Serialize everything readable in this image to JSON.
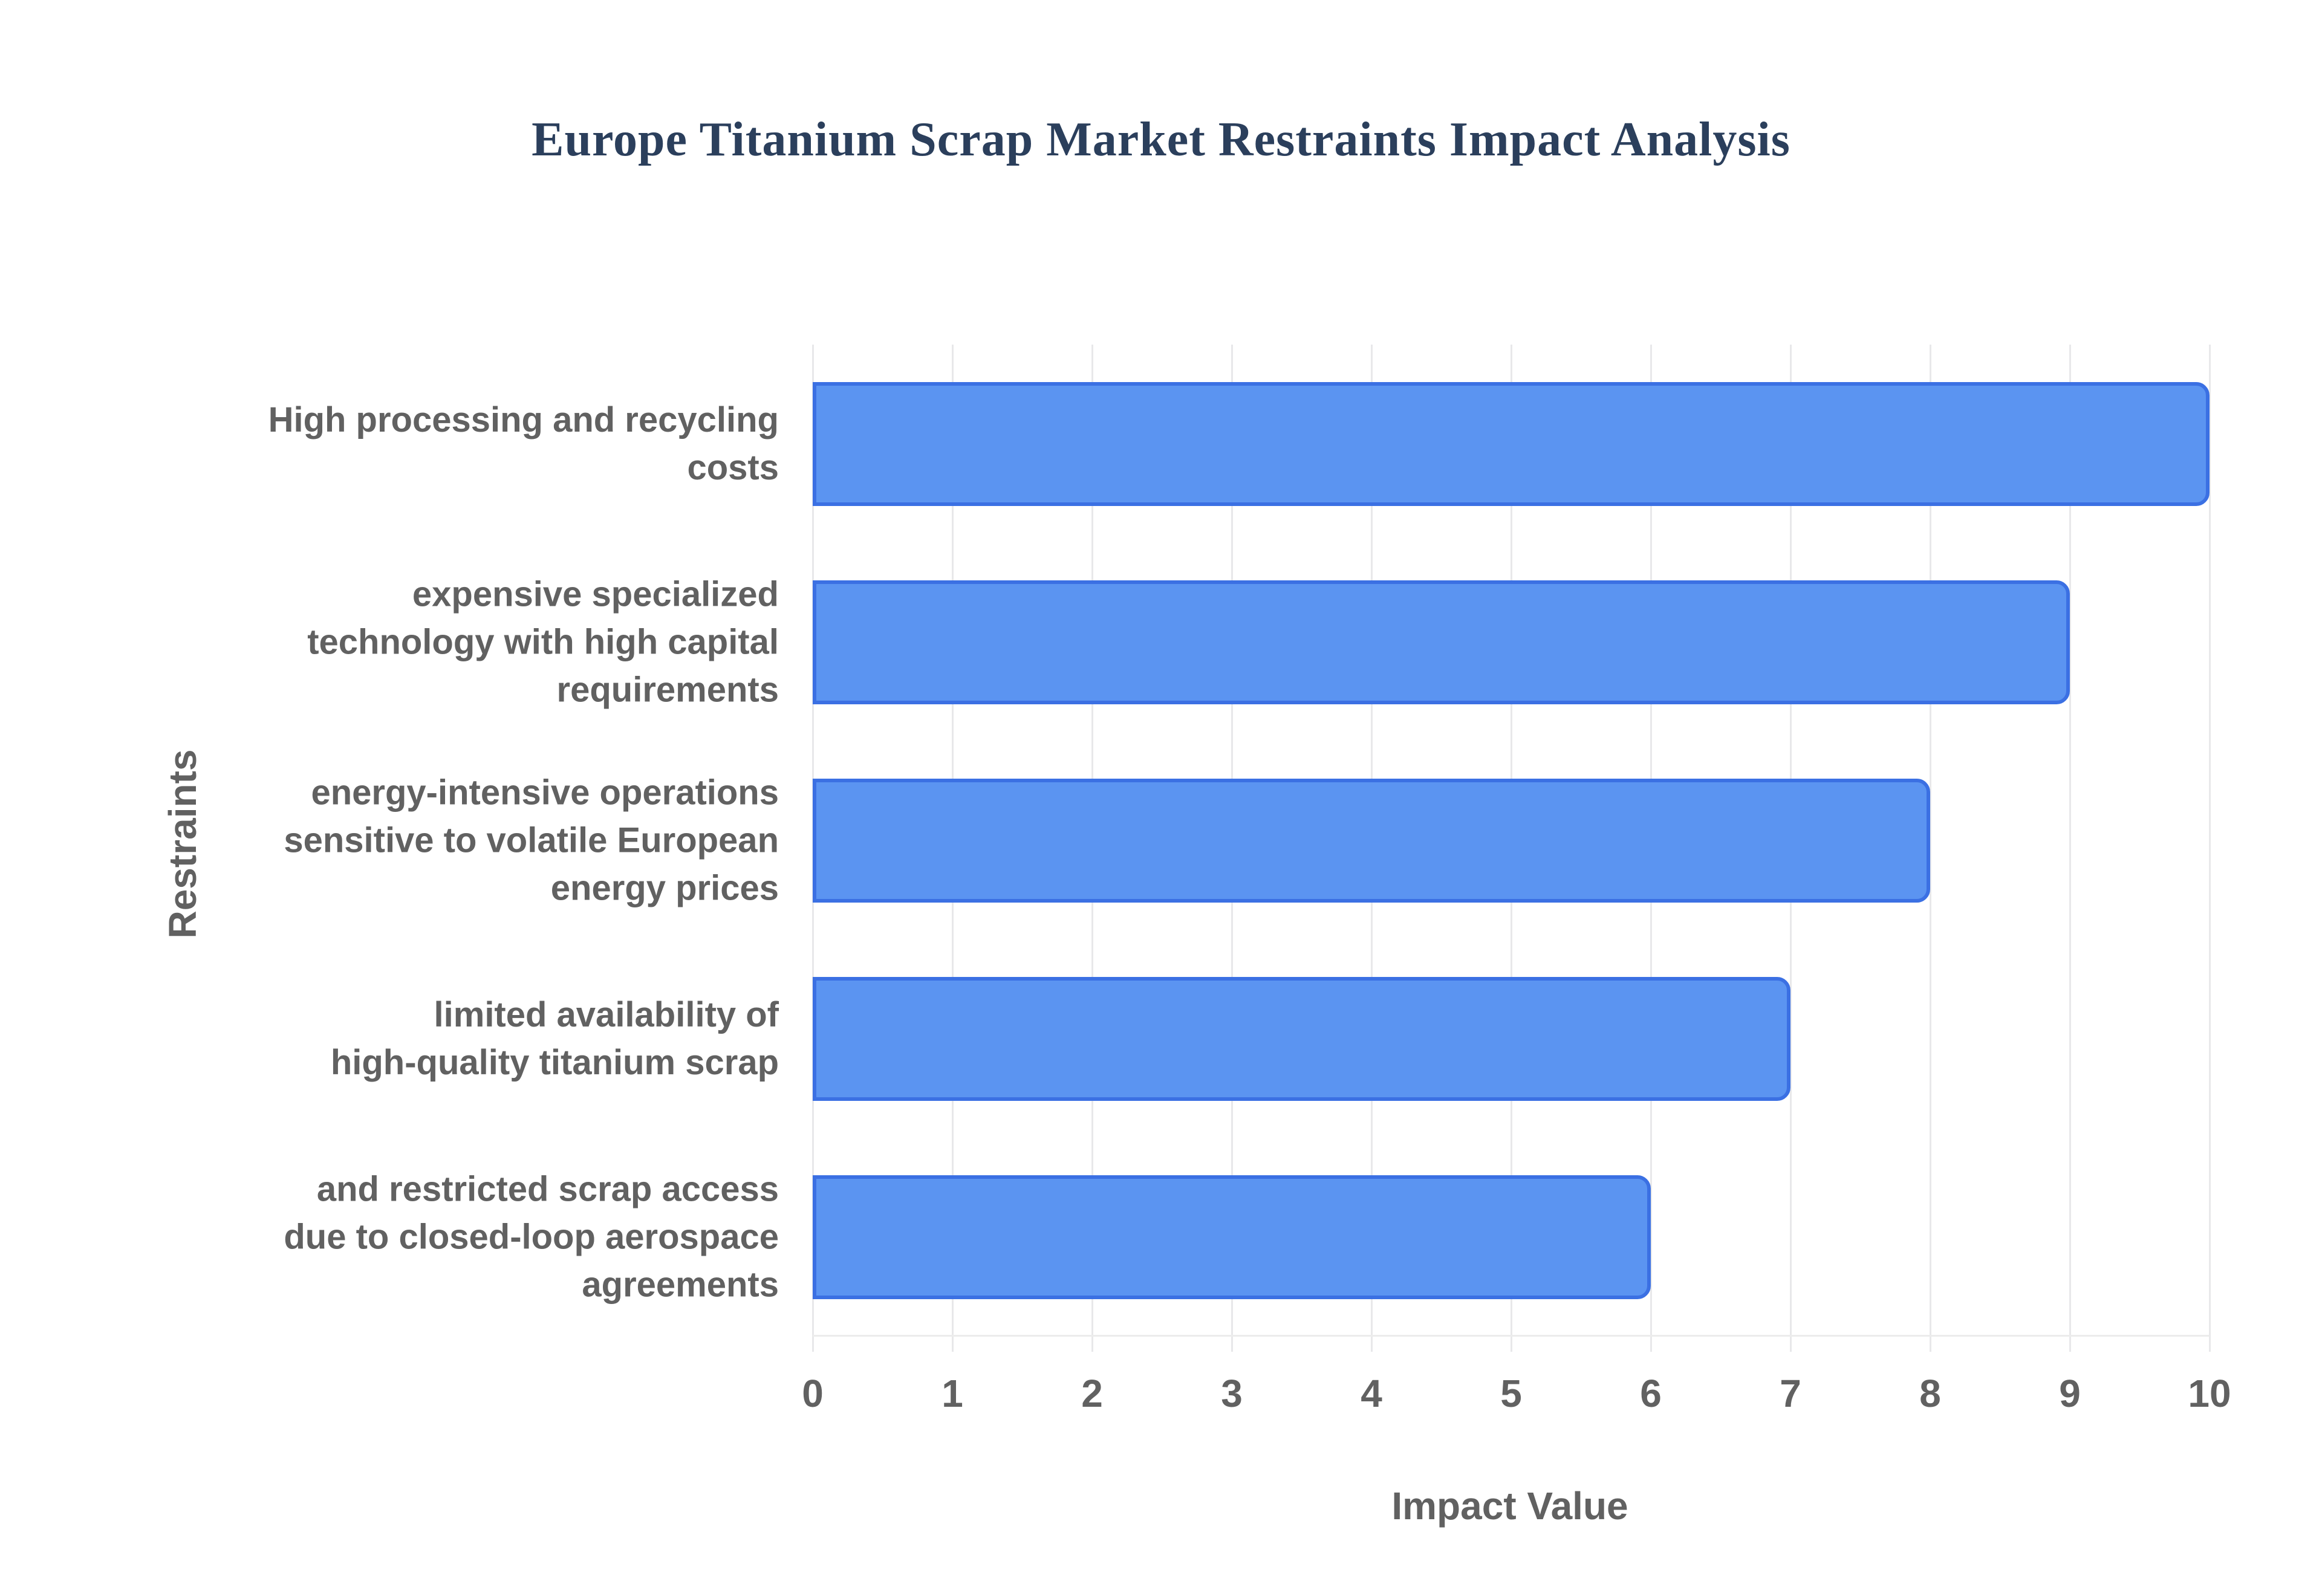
{
  "chart_data": {
    "type": "bar",
    "orientation": "horizontal",
    "title": "Europe Titanium Scrap Market Restraints Impact Analysis",
    "xlabel": "Impact Value",
    "ylabel": "Restraints",
    "categories": [
      "High processing and recycling\ncosts",
      "expensive specialized\ntechnology with high capital\nrequirements",
      "energy-intensive operations\nsensitive to volatile European\nenergy prices",
      "limited availability of\nhigh-quality titanium scrap",
      "and restricted scrap access\ndue to closed-loop aerospace\nagreements"
    ],
    "values": [
      10,
      9,
      8,
      7,
      6
    ],
    "xlim": [
      0,
      10
    ],
    "xticks": [
      0,
      1,
      2,
      3,
      4,
      5,
      6,
      7,
      8,
      9,
      10
    ],
    "grid": true,
    "legend_position": "none",
    "colors": {
      "bar_fill": "#5b94f1",
      "bar_border": "#3b70e3",
      "gridline": "#e8e8ea",
      "axis_line": "#ececec",
      "axis_text": "#616161",
      "title_text": "#2b3f5c",
      "background": "#ffffff"
    }
  }
}
